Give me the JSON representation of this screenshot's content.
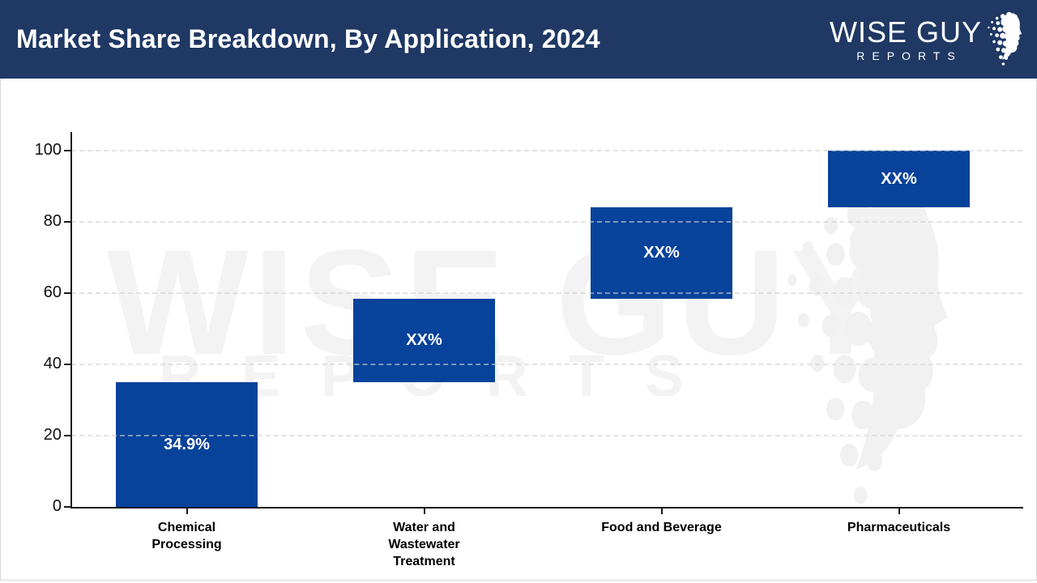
{
  "header": {
    "bg_color": "#1F3864",
    "title": "Market Share Breakdown, By Application, 2024",
    "logo": {
      "name": "WISE GUY",
      "subtitle": "REPORTS"
    }
  },
  "watermark": {
    "line1": "WISE GUY",
    "line2": "REPORTS"
  },
  "chart_data": {
    "type": "bar",
    "subtype": "waterfall",
    "title": "Market Share Breakdown, By Application, 2024",
    "categories": [
      "Chemical Processing",
      "Water and Wastewater Treatment",
      "Food and Beverage",
      "Pharmaceuticals"
    ],
    "segments": [
      {
        "category": "Chemical Processing",
        "label_lines": [
          "Chemical",
          "Processing"
        ],
        "start": 0,
        "end": 34.9,
        "value_label": "34.9%"
      },
      {
        "category": "Water and Wastewater Treatment",
        "label_lines": [
          "Water and",
          "Wastewater",
          "Treatment"
        ],
        "start": 34.9,
        "end": 58.5,
        "value_label": "XX%"
      },
      {
        "category": "Food and Beverage",
        "label_lines": [
          "Food and Beverage"
        ],
        "start": 58.5,
        "end": 84.0,
        "value_label": "XX%"
      },
      {
        "category": "Pharmaceuticals",
        "label_lines": [
          "Pharmaceuticals"
        ],
        "start": 84.0,
        "end": 100.0,
        "value_label": "XX%"
      }
    ],
    "y_ticks": [
      0,
      20,
      40,
      60,
      80,
      100
    ],
    "ylim": [
      0,
      105
    ],
    "xlabel": "",
    "ylabel": "",
    "grid": "horizontal-dashed",
    "legend": "none",
    "bar_color": "#07429B",
    "value_label_color": "#FFFFFF",
    "axis_color": "#1A1A1A"
  }
}
